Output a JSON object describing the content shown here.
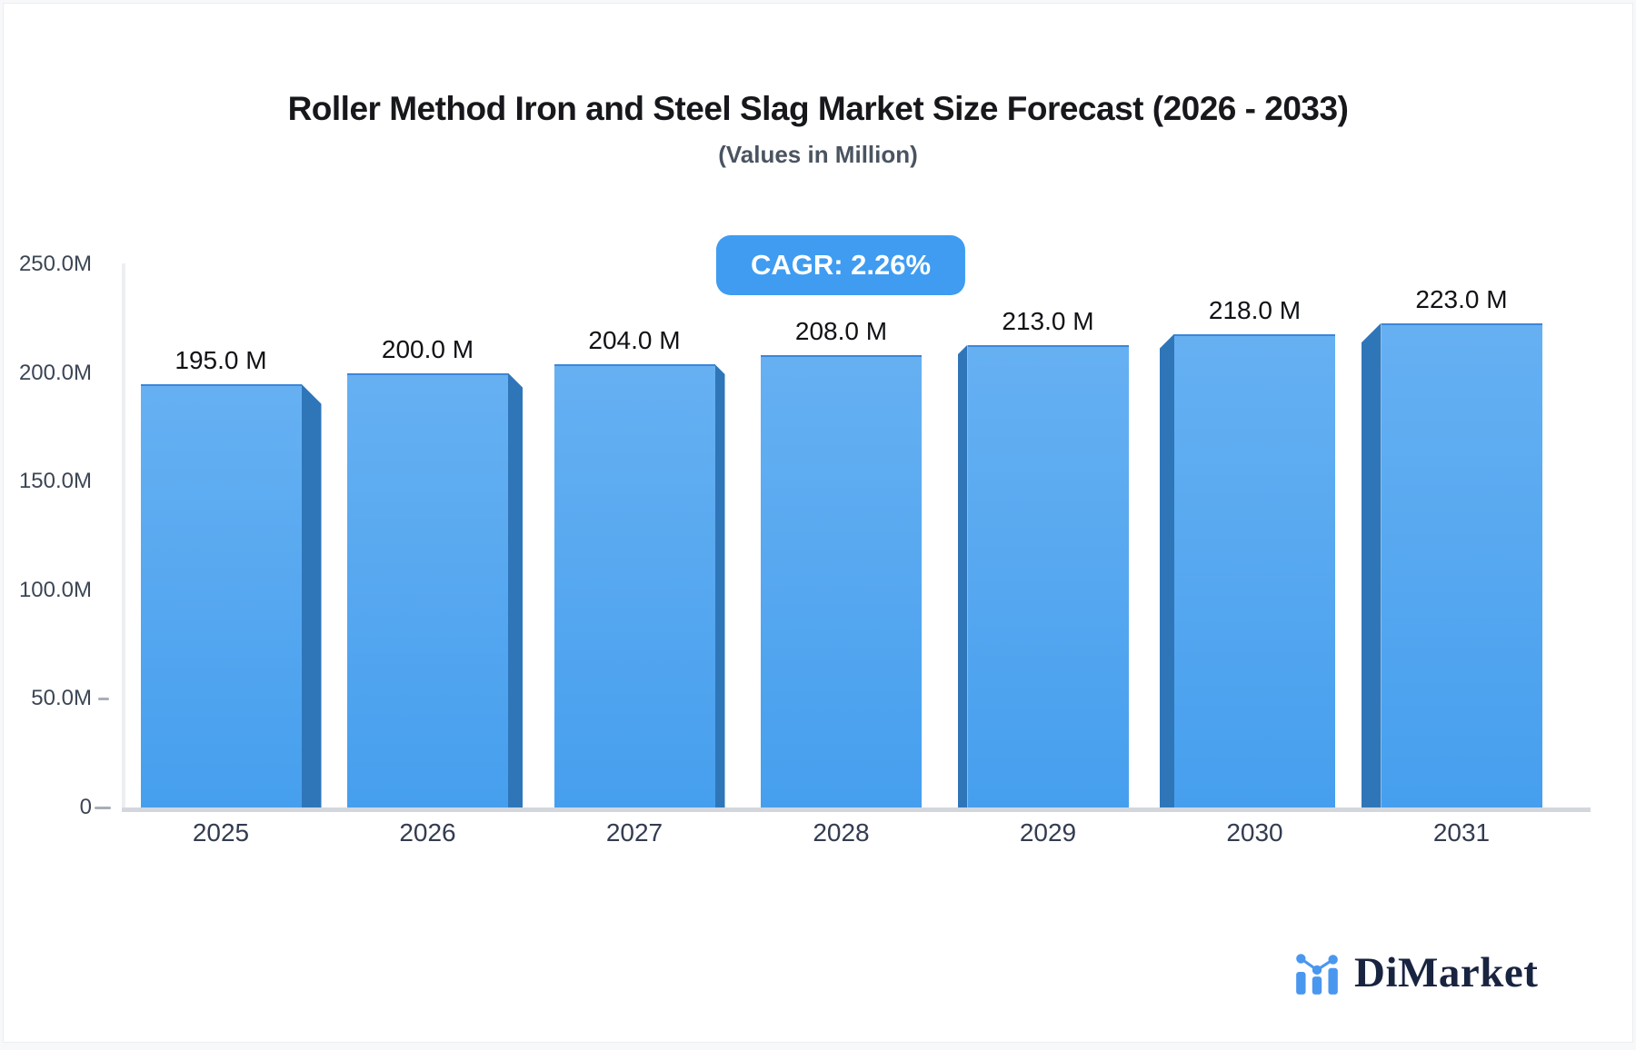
{
  "title": "Roller Method Iron and Steel Slag Market Size Forecast (2026 - 2033)",
  "subtitle": "(Values in Million)",
  "cagr_label": "CAGR: 2.26%",
  "chart_data": {
    "type": "bar",
    "title": "Roller Method Iron and Steel Slag Market Size Forecast (2026 - 2033)",
    "subtitle": "(Values in Million)",
    "unit": "Million",
    "cagr": "2.26%",
    "categories": [
      "2025",
      "2026",
      "2027",
      "2028",
      "2029",
      "2030",
      "2031"
    ],
    "values": [
      195.0,
      200.0,
      204.0,
      208.0,
      213.0,
      218.0,
      223.0
    ],
    "value_labels": [
      "195.0 M",
      "200.0 M",
      "204.0 M",
      "208.0 M",
      "213.0 M",
      "218.0 M",
      "223.0 M"
    ],
    "y_tick_labels": [
      "250.0M",
      "200.0M",
      "150.0M",
      "100.0M",
      "50.0M",
      "0"
    ],
    "ylim": [
      0,
      250
    ],
    "xlabel": "",
    "ylabel": "",
    "grid": false,
    "legend": false,
    "bar_face_color_top": "#66b0f2",
    "bar_face_color_bottom": "#469fee",
    "bar_side_color": "#2f76b9",
    "accent_color": "#3f9cf1",
    "axis_color": "#d3d7dd"
  },
  "branding": {
    "logo_text": "DiMarket",
    "logo_icon": "bar-chart-logo-icon"
  }
}
